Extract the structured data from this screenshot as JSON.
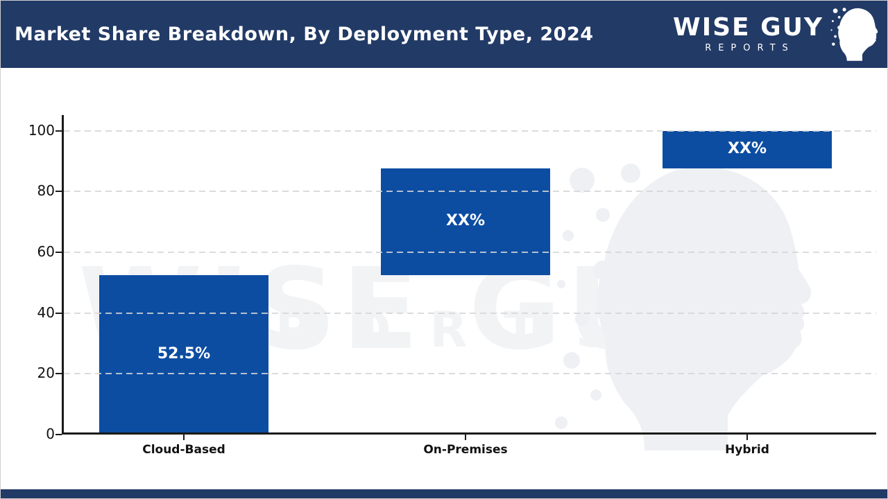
{
  "header": {
    "title": "Market Share Breakdown, By Deployment Type, 2024",
    "logo": {
      "line1": "WISE GUY",
      "line2": "REPORTS"
    }
  },
  "watermark": {
    "line1": "WISE GUY",
    "line2": "REPORTS"
  },
  "chart_data": {
    "type": "bar",
    "subtype": "waterfall",
    "title": "Market Share Breakdown, By Deployment Type, 2024",
    "categories": [
      "Cloud-Based",
      "On-Premises",
      "Hybrid"
    ],
    "series": [
      {
        "name": "Market Share (%)",
        "segments": [
          {
            "category": "Cloud-Based",
            "start": 0,
            "end": 52.5,
            "label": "52.5%"
          },
          {
            "category": "On-Premises",
            "start": 52.5,
            "end": 87.5,
            "label": "XX%"
          },
          {
            "category": "Hybrid",
            "start": 87.5,
            "end": 100,
            "label": "XX%"
          }
        ]
      }
    ],
    "xlabel": "",
    "ylabel": "",
    "yticks": [
      0,
      20,
      40,
      60,
      80,
      100
    ],
    "ylim": [
      0,
      105
    ],
    "grid": "horizontal-dashed",
    "legend": "none",
    "bar_color": "#0C4DA2",
    "bar_label_color": "#FFFFFF"
  },
  "colors": {
    "header_bg": "#223A66",
    "footer_bg": "#223A66",
    "bar": "#0C4DA2",
    "grid": "#D5D5D5",
    "axis": "#1A1A1A",
    "watermark": "#F2F3F5",
    "title_text": "#FFFFFF"
  }
}
